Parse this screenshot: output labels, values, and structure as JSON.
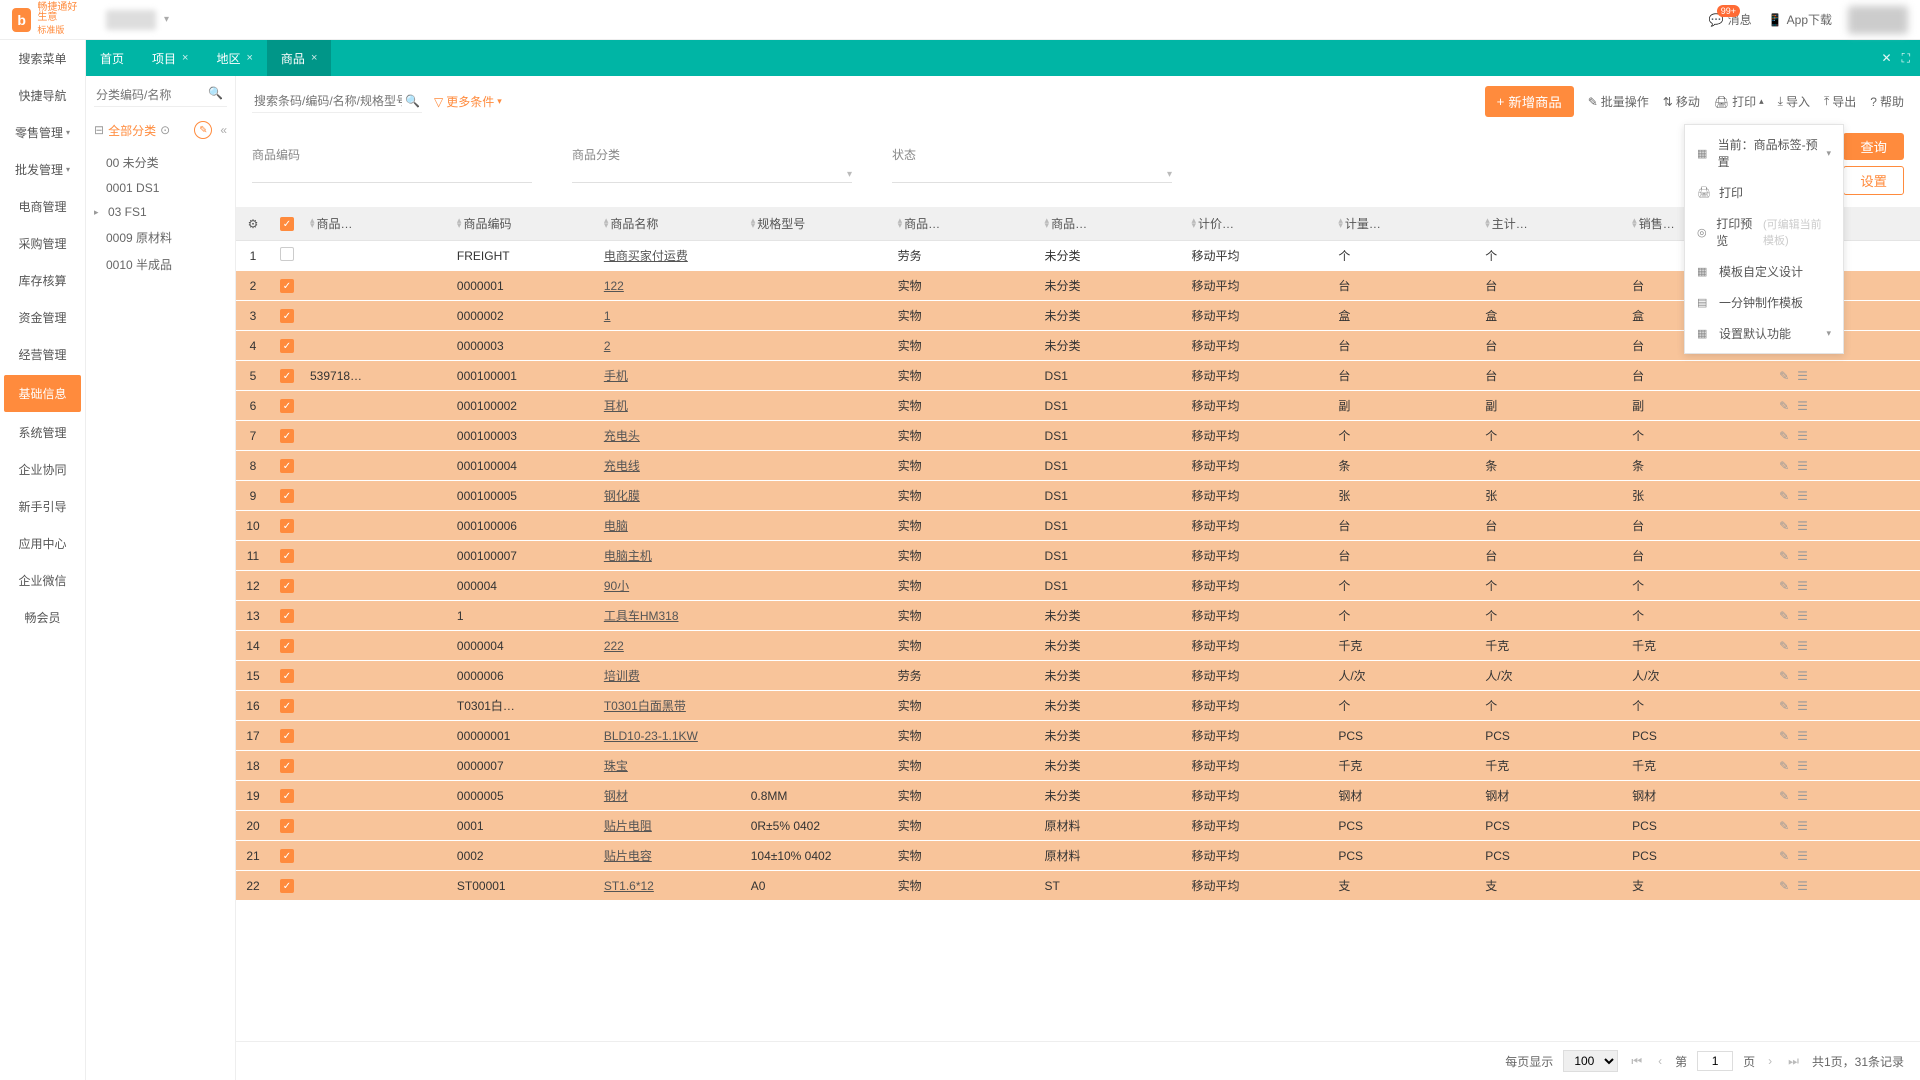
{
  "brand": {
    "sub": "标准版"
  },
  "topbar": {
    "badge": "99+",
    "msg": "消息",
    "download": "App下载"
  },
  "side_menu": [
    {
      "label": "搜索菜单",
      "caret": false
    },
    {
      "label": "快捷导航",
      "caret": false
    },
    {
      "label": "零售管理",
      "caret": true
    },
    {
      "label": "批发管理",
      "caret": true
    },
    {
      "label": "电商管理",
      "caret": false
    },
    {
      "label": "采购管理",
      "caret": false
    },
    {
      "label": "库存核算",
      "caret": false
    },
    {
      "label": "资金管理",
      "caret": false
    },
    {
      "label": "经营管理",
      "caret": false
    },
    {
      "label": "基础信息",
      "caret": false,
      "active": true
    },
    {
      "label": "系统管理",
      "caret": false
    },
    {
      "label": "企业协同",
      "caret": false
    },
    {
      "label": "新手引导",
      "caret": false
    },
    {
      "label": "应用中心",
      "caret": false
    },
    {
      "label": "企业微信",
      "caret": false
    },
    {
      "label": "畅会员",
      "caret": false
    }
  ],
  "tabs": [
    {
      "label": "首页",
      "closable": false
    },
    {
      "label": "项目",
      "closable": true
    },
    {
      "label": "地区",
      "closable": true
    },
    {
      "label": "商品",
      "closable": true,
      "active": true
    }
  ],
  "cat_panel": {
    "search_ph": "分类编码/名称",
    "all_label": "全部分类",
    "items": [
      {
        "label": "00 未分类"
      },
      {
        "label": "0001 DS1"
      },
      {
        "label": "03 FS1",
        "has_child": true
      },
      {
        "label": "0009 原材料"
      },
      {
        "label": "0010 半成品"
      }
    ]
  },
  "toolbar": {
    "search_ph": "搜索条码/编码/名称/规格型号/别名",
    "more": "更多条件",
    "new": "新增商品",
    "batch": "批量操作",
    "move": "移动",
    "print": "打印",
    "import": "导入",
    "export": "导出",
    "help": "帮助"
  },
  "filters": {
    "f1": "商品编码",
    "f2": "商品分类",
    "f3": "状态",
    "query": "查询",
    "settings": "设置"
  },
  "print_menu": {
    "current": "当前：商品标签-预置",
    "print": "打印",
    "preview": "打印预览",
    "preview_hint": "(可编辑当前模板)",
    "custom": "模板自定义设计",
    "quick": "一分钟制作模板",
    "def": "设置默认功能"
  },
  "columns": [
    "",
    "",
    "商品…",
    "商品编码",
    "商品名称",
    "规格型号",
    "商品…",
    "商品…",
    "计价…",
    "计量…",
    "主计…",
    "销售…",
    "操作"
  ],
  "rows": [
    {
      "idx": 1,
      "sel": false,
      "bc": "",
      "code": "FREIGHT",
      "name": "电商买家付运费",
      "spec": "",
      "t1": "劳务",
      "t2": "未分类",
      "p": "移动平均",
      "u1": "个",
      "u2": "个",
      "u3": ""
    },
    {
      "idx": 2,
      "sel": true,
      "bc": "",
      "code": "0000001",
      "name": "122",
      "spec": "",
      "t1": "实物",
      "t2": "未分类",
      "p": "移动平均",
      "u1": "台",
      "u2": "台",
      "u3": "台"
    },
    {
      "idx": 3,
      "sel": true,
      "bc": "",
      "code": "0000002",
      "name": "1",
      "spec": "",
      "t1": "实物",
      "t2": "未分类",
      "p": "移动平均",
      "u1": "盒",
      "u2": "盒",
      "u3": "盒"
    },
    {
      "idx": 4,
      "sel": true,
      "bc": "",
      "code": "0000003",
      "name": "2",
      "spec": "",
      "t1": "实物",
      "t2": "未分类",
      "p": "移动平均",
      "u1": "台",
      "u2": "台",
      "u3": "台"
    },
    {
      "idx": 5,
      "sel": true,
      "bc": "539718…",
      "code": "000100001",
      "name": "手机",
      "spec": "",
      "t1": "实物",
      "t2": "DS1",
      "p": "移动平均",
      "u1": "台",
      "u2": "台",
      "u3": "台"
    },
    {
      "idx": 6,
      "sel": true,
      "bc": "",
      "code": "000100002",
      "name": "耳机",
      "spec": "",
      "t1": "实物",
      "t2": "DS1",
      "p": "移动平均",
      "u1": "副",
      "u2": "副",
      "u3": "副"
    },
    {
      "idx": 7,
      "sel": true,
      "bc": "",
      "code": "000100003",
      "name": "充电头",
      "spec": "",
      "t1": "实物",
      "t2": "DS1",
      "p": "移动平均",
      "u1": "个",
      "u2": "个",
      "u3": "个"
    },
    {
      "idx": 8,
      "sel": true,
      "bc": "",
      "code": "000100004",
      "name": "充电线",
      "spec": "",
      "t1": "实物",
      "t2": "DS1",
      "p": "移动平均",
      "u1": "条",
      "u2": "条",
      "u3": "条"
    },
    {
      "idx": 9,
      "sel": true,
      "bc": "",
      "code": "000100005",
      "name": "钢化膜",
      "spec": "",
      "t1": "实物",
      "t2": "DS1",
      "p": "移动平均",
      "u1": "张",
      "u2": "张",
      "u3": "张"
    },
    {
      "idx": 10,
      "sel": true,
      "bc": "",
      "code": "000100006",
      "name": "电脑",
      "spec": "",
      "t1": "实物",
      "t2": "DS1",
      "p": "移动平均",
      "u1": "台",
      "u2": "台",
      "u3": "台"
    },
    {
      "idx": 11,
      "sel": true,
      "bc": "",
      "code": "000100007",
      "name": "电脑主机",
      "spec": "",
      "t1": "实物",
      "t2": "DS1",
      "p": "移动平均",
      "u1": "台",
      "u2": "台",
      "u3": "台"
    },
    {
      "idx": 12,
      "sel": true,
      "bc": "",
      "code": "000004",
      "name": "90小",
      "spec": "",
      "t1": "实物",
      "t2": "DS1",
      "p": "移动平均",
      "u1": "个",
      "u2": "个",
      "u3": "个"
    },
    {
      "idx": 13,
      "sel": true,
      "bc": "",
      "code": "1",
      "name": "工具车HM318",
      "spec": "",
      "t1": "实物",
      "t2": "未分类",
      "p": "移动平均",
      "u1": "个",
      "u2": "个",
      "u3": "个"
    },
    {
      "idx": 14,
      "sel": true,
      "bc": "",
      "code": "0000004",
      "name": "222",
      "spec": "",
      "t1": "实物",
      "t2": "未分类",
      "p": "移动平均",
      "u1": "千克",
      "u2": "千克",
      "u3": "千克"
    },
    {
      "idx": 15,
      "sel": true,
      "bc": "",
      "code": "0000006",
      "name": "培训费",
      "spec": "",
      "t1": "劳务",
      "t2": "未分类",
      "p": "移动平均",
      "u1": "人/次",
      "u2": "人/次",
      "u3": "人/次"
    },
    {
      "idx": 16,
      "sel": true,
      "bc": "",
      "code": "T0301白…",
      "name": "T0301白面黑带",
      "spec": "",
      "t1": "实物",
      "t2": "未分类",
      "p": "移动平均",
      "u1": "个",
      "u2": "个",
      "u3": "个"
    },
    {
      "idx": 17,
      "sel": true,
      "bc": "",
      "code": "00000001",
      "name": "BLD10-23-1.1KW",
      "spec": "",
      "t1": "实物",
      "t2": "未分类",
      "p": "移动平均",
      "u1": "PCS",
      "u2": "PCS",
      "u3": "PCS"
    },
    {
      "idx": 18,
      "sel": true,
      "bc": "",
      "code": "0000007",
      "name": "珠宝",
      "spec": "",
      "t1": "实物",
      "t2": "未分类",
      "p": "移动平均",
      "u1": "千克",
      "u2": "千克",
      "u3": "千克"
    },
    {
      "idx": 19,
      "sel": true,
      "bc": "",
      "code": "0000005",
      "name": "钢材",
      "spec": "0.8MM",
      "t1": "实物",
      "t2": "未分类",
      "p": "移动平均",
      "u1": "钢材",
      "u2": "钢材",
      "u3": "钢材"
    },
    {
      "idx": 20,
      "sel": true,
      "bc": "",
      "code": "0001",
      "name": "贴片电阻",
      "spec": "0R±5% 0402",
      "t1": "实物",
      "t2": "原材料",
      "p": "移动平均",
      "u1": "PCS",
      "u2": "PCS",
      "u3": "PCS"
    },
    {
      "idx": 21,
      "sel": true,
      "bc": "",
      "code": "0002",
      "name": "贴片电容",
      "spec": "104±10% 0402",
      "t1": "实物",
      "t2": "原材料",
      "p": "移动平均",
      "u1": "PCS",
      "u2": "PCS",
      "u3": "PCS"
    },
    {
      "idx": 22,
      "sel": true,
      "bc": "",
      "code": "ST00001",
      "name": "ST1.6*12",
      "spec": "A0",
      "t1": "实物",
      "t2": "ST",
      "p": "移动平均",
      "u1": "支",
      "u2": "支",
      "u3": "支"
    }
  ],
  "pager": {
    "per_label": "每页显示",
    "per_value": "100",
    "page_pre": "第",
    "page_val": "1",
    "page_suf": "页",
    "total": "共1页，31条记录"
  }
}
